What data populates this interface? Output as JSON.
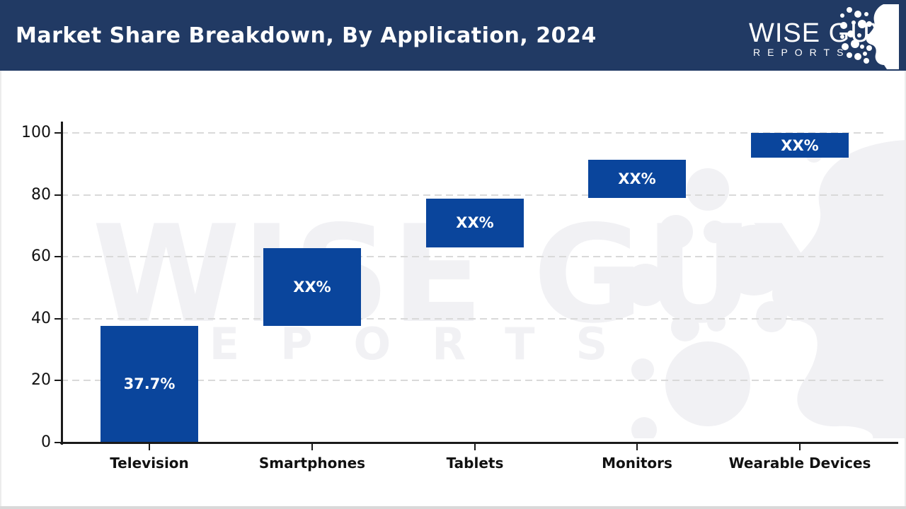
{
  "header": {
    "title": "Market Share Breakdown, By Application, 2024",
    "bg_color": "#213a64",
    "logo": {
      "line1": "WISE GUY",
      "line2": "REPORTS"
    }
  },
  "watermark": {
    "line1": "WISE GUY",
    "line2": "REPORTS"
  },
  "colors": {
    "header_bg": "#213a64",
    "bar": "#0a459c",
    "bar_label": "#ffffff",
    "gridline": "#d9d9d9",
    "watermark": "#f1f1f4"
  },
  "chart_data": {
    "type": "bar",
    "variant": "waterfall",
    "title": "Market Share Breakdown, By Application, 2024",
    "categories": [
      "Television",
      "Smartphones",
      "Tablets",
      "Monitors",
      "Wearable Devices"
    ],
    "segments": [
      {
        "category": "Television",
        "start": 0,
        "end": 37.7,
        "label": "37.7%"
      },
      {
        "category": "Smartphones",
        "start": 37.7,
        "end": 62.8,
        "label": "XX%"
      },
      {
        "category": "Tablets",
        "start": 63,
        "end": 78.8,
        "label": "XX%"
      },
      {
        "category": "Monitors",
        "start": 79,
        "end": 91.3,
        "label": "XX%"
      },
      {
        "category": "Wearable Devices",
        "start": 92,
        "end": 100,
        "label": "XX%"
      }
    ],
    "ylim": [
      0,
      100
    ],
    "yticks": [
      0,
      20,
      40,
      60,
      80,
      100
    ],
    "xlabel": "",
    "ylabel": "",
    "grid": "horizontal-dashed",
    "legend": "none",
    "bar_color": "#0a459c",
    "bar_label_color": "#ffffff"
  }
}
